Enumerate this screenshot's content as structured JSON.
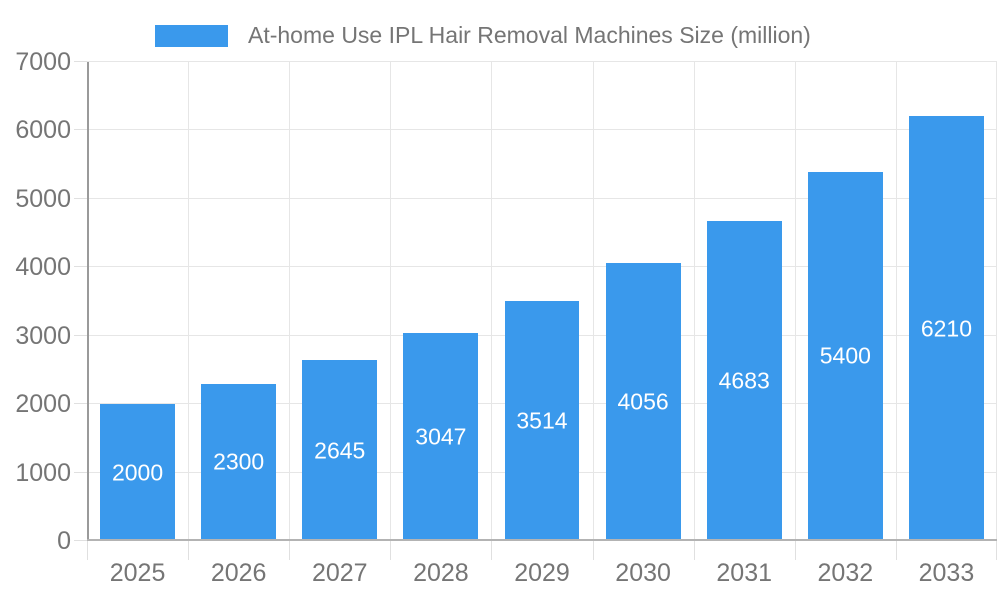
{
  "legend": {
    "swatch_color": "#3a99ec"
  },
  "chart_data": {
    "type": "bar",
    "title": "At-home Use IPL Hair Removal Machines Size (million)",
    "series_name": "At-home Use IPL Hair Removal Machines Size (million)",
    "categories": [
      "2025",
      "2026",
      "2027",
      "2028",
      "2029",
      "2030",
      "2031",
      "2032",
      "2033"
    ],
    "values": [
      2000,
      2300,
      2645,
      3047,
      3514,
      4056,
      4683,
      5400,
      6210
    ],
    "xlabel": "",
    "ylabel": "",
    "ylim": [
      0,
      7000
    ],
    "yticks": [
      0,
      1000,
      2000,
      3000,
      4000,
      5000,
      6000,
      7000
    ],
    "grid": true,
    "legend_position": "top",
    "bar_color": "#3a99ec",
    "value_label_color": "#ffffff",
    "axis_label_color": "#757575",
    "grid_color": "#e6e6e6",
    "y_axis_line_color": "#9a9a9a",
    "x_axis_line_color": "#b3b3b3"
  }
}
